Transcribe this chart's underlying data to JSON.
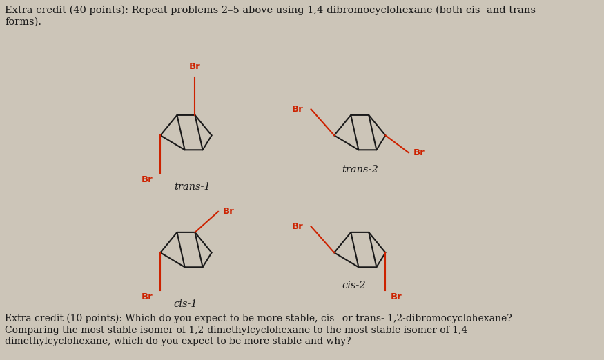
{
  "bg_color": "#ccc5b8",
  "line_color": "#1a1a1a",
  "br_color": "#cc2200",
  "label_color": "#1a1a1a",
  "font_size_title": 10.5,
  "font_size_label": 10.5,
  "font_size_br": 9.5,
  "font_size_footer": 10.0,
  "title_text": "Extra credit (40 points): Repeat problems 2–5 above using 1,4-dibromocyclohexane (both cis- and trans-\nforms).",
  "footer_text": "Extra credit (10 points): Which do you expect to be more stable, cis– or trans- 1,2-dibromocyclohexane?\nComparing the most stable isomer of 1,2-dimethylcyclohexane to the most stable isomer of 1,4-\ndimethylcyclohexane, which do you expect to be more stable and why?"
}
